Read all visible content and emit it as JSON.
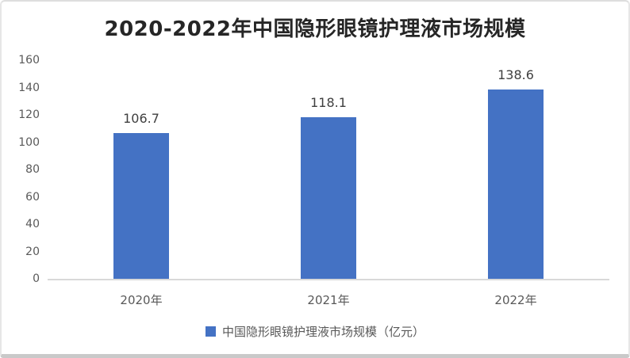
{
  "chart_data": {
    "type": "bar",
    "title": "2020-2022年中国隐形眼镜护理液市场规模",
    "categories": [
      "2020年",
      "2021年",
      "2022年"
    ],
    "values": [
      106.7,
      118.1,
      138.6
    ],
    "value_labels": [
      "106.7",
      "118.1",
      "138.6"
    ],
    "legend": "中国隐形眼镜护理液市场规模（亿元）",
    "xlabel": "",
    "ylabel": "",
    "ylim": [
      0,
      160
    ],
    "yticks": [
      0,
      20,
      40,
      60,
      80,
      100,
      120,
      140,
      160
    ],
    "grid": false,
    "legend_position": "bottom",
    "bar_color": "#4472C4",
    "axis_line_color": "#d9d9d9",
    "tick_label_color": "#595959",
    "value_label_color": "#3f3f3f",
    "title_color": "#262626"
  }
}
